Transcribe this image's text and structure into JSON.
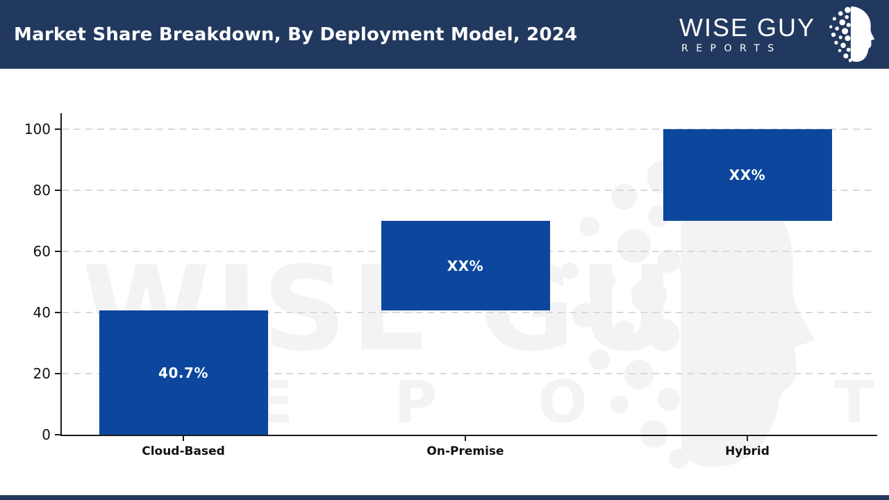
{
  "header": {
    "title": "Market Share Breakdown, By Deployment Model, 2024",
    "logo": {
      "line1": "WISE GUY",
      "line2": "REPORTS"
    }
  },
  "watermark": {
    "line1": "WISE GUY",
    "line2": "R E P O R T S"
  },
  "chart_data": {
    "type": "bar",
    "variant": "floating-segment-bars",
    "title": "Market Share Breakdown, By Deployment Model, 2024",
    "categories": [
      "Cloud-Based",
      "On-Premise",
      "Hybrid"
    ],
    "series": [
      {
        "name": "Cloud-Based",
        "start": 0,
        "end": 40.7,
        "label": "40.7%"
      },
      {
        "name": "On-Premise",
        "start": 40.7,
        "end": 70,
        "label": "XX%"
      },
      {
        "name": "Hybrid",
        "start": 70,
        "end": 100,
        "label": "XX%"
      }
    ],
    "xlabel": "",
    "ylabel": "",
    "ylim": [
      0,
      100
    ],
    "yticks": [
      0,
      20,
      40,
      60,
      80,
      100
    ],
    "grid": "horizontal-dashed",
    "legend": "none",
    "bar_color": "#0c479d",
    "bar_label_color": "#ffffff",
    "grid_color": "#d9d9d9",
    "axis_color": "#1a1a1a"
  },
  "colors": {
    "header_bg": "#22395f",
    "footer_bg": "#22395f",
    "watermark": "#f3f3f6"
  }
}
